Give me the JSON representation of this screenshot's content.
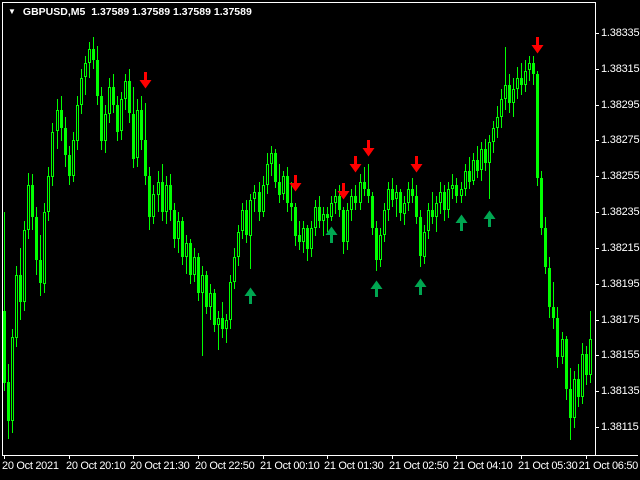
{
  "window": {
    "dropdown_icon": "▼",
    "title": "GBPUSD,M5",
    "quotes": [
      "1.37589",
      "1.37589",
      "1.37589",
      "1.37589"
    ]
  },
  "colors": {
    "background": "#000000",
    "frame": "#ffffff",
    "axis_text": "#ffffff",
    "candle": "#00ff00",
    "bull_fill": "#000000",
    "bear_fill": "#00ff00",
    "sell_arrow": "#ff0000",
    "buy_arrow": "#00a651"
  },
  "chart_data": {
    "type": "candlestick",
    "symbol": "GBPUSD",
    "timeframe": "M5",
    "title": "GBPUSD,M5 1.37589 1.37589 1.37589 1.37589",
    "grid": false,
    "y_axis": {
      "side": "right",
      "max": 1.38335,
      "min": 1.38115,
      "step": 0.0002,
      "labels": [
        "1.38335",
        "1.38315",
        "1.38295",
        "1.38275",
        "1.38255",
        "1.38235",
        "1.38215",
        "1.38195",
        "1.38175",
        "1.38155",
        "1.38135",
        "1.38115"
      ]
    },
    "x_axis": {
      "side": "bottom",
      "ticks": [
        {
          "bar": 0,
          "label": "20 Oct 2021"
        },
        {
          "bar": 16,
          "label": "20 Oct 20:10"
        },
        {
          "bar": 32,
          "label": "20 Oct 21:30"
        },
        {
          "bar": 48,
          "label": "20 Oct 22:50"
        },
        {
          "bar": 64,
          "label": "21 Oct 00:10"
        },
        {
          "bar": 80,
          "label": "21 Oct 01:30"
        },
        {
          "bar": 96,
          "label": "21 Oct 02:50"
        },
        {
          "bar": 112,
          "label": "21 Oct 04:10"
        },
        {
          "bar": 128,
          "label": "21 Oct 05:30"
        },
        {
          "bar": 144,
          "label": "21 Oct 06:50"
        }
      ]
    },
    "candles_format": [
      "open",
      "high",
      "low",
      "close"
    ],
    "candles": [
      [
        1.3818,
        1.38235,
        1.38135,
        1.3814
      ],
      [
        1.3814,
        1.3815,
        1.38108,
        1.38118
      ],
      [
        1.38118,
        1.3817,
        1.38112,
        1.38165
      ],
      [
        1.38165,
        1.38205,
        1.3816,
        1.382
      ],
      [
        1.382,
        1.38215,
        1.38175,
        1.38185
      ],
      [
        1.38185,
        1.3823,
        1.3818,
        1.38225
      ],
      [
        1.38225,
        1.38257,
        1.3822,
        1.3825
      ],
      [
        1.3825,
        1.38256,
        1.38225,
        1.38232
      ],
      [
        1.38232,
        1.38238,
        1.382,
        1.38208
      ],
      [
        1.38208,
        1.38222,
        1.38188,
        1.38195
      ],
      [
        1.38195,
        1.3824,
        1.3819,
        1.38235
      ],
      [
        1.38235,
        1.3826,
        1.3823,
        1.38255
      ],
      [
        1.38255,
        1.38285,
        1.3825,
        1.3828
      ],
      [
        1.3828,
        1.38298,
        1.3827,
        1.38292
      ],
      [
        1.38292,
        1.383,
        1.38275,
        1.38282
      ],
      [
        1.38282,
        1.38288,
        1.3826,
        1.38267
      ],
      [
        1.38267,
        1.38272,
        1.3825,
        1.38255
      ],
      [
        1.38255,
        1.3828,
        1.38252,
        1.38275
      ],
      [
        1.38275,
        1.383,
        1.3827,
        1.38295
      ],
      [
        1.38295,
        1.38315,
        1.3829,
        1.3831
      ],
      [
        1.3831,
        1.38322,
        1.383,
        1.38318
      ],
      [
        1.38318,
        1.3833,
        1.3831,
        1.38326
      ],
      [
        1.38326,
        1.38333,
        1.38315,
        1.3832
      ],
      [
        1.3832,
        1.38328,
        1.38295,
        1.383
      ],
      [
        1.383,
        1.38305,
        1.3827,
        1.38275
      ],
      [
        1.38275,
        1.38295,
        1.38268,
        1.3829
      ],
      [
        1.3829,
        1.3831,
        1.38285,
        1.38305
      ],
      [
        1.38305,
        1.38312,
        1.3829,
        1.38295
      ],
      [
        1.38295,
        1.383,
        1.38275,
        1.3828
      ],
      [
        1.3828,
        1.38302,
        1.38275,
        1.38298
      ],
      [
        1.38298,
        1.38312,
        1.38292,
        1.38308
      ],
      [
        1.38308,
        1.38315,
        1.38285,
        1.3829
      ],
      [
        1.3829,
        1.38305,
        1.3826,
        1.38265
      ],
      [
        1.38265,
        1.38298,
        1.3826,
        1.38292
      ],
      [
        1.38292,
        1.383,
        1.3827,
        1.38275
      ],
      [
        1.38275,
        1.38296,
        1.3825,
        1.38255
      ],
      [
        1.38255,
        1.3826,
        1.38225,
        1.38232
      ],
      [
        1.38232,
        1.3825,
        1.38228,
        1.38245
      ],
      [
        1.38245,
        1.38258,
        1.38235,
        1.38252
      ],
      [
        1.38252,
        1.38262,
        1.3823,
        1.38235
      ],
      [
        1.38235,
        1.38255,
        1.38228,
        1.3825
      ],
      [
        1.3825,
        1.38256,
        1.3823,
        1.38236
      ],
      [
        1.38236,
        1.3824,
        1.38215,
        1.3822
      ],
      [
        1.3822,
        1.38235,
        1.38212,
        1.3823
      ],
      [
        1.3823,
        1.38232,
        1.38205,
        1.3821
      ],
      [
        1.3821,
        1.38222,
        1.382,
        1.38218
      ],
      [
        1.38218,
        1.3822,
        1.38195,
        1.382
      ],
      [
        1.382,
        1.38215,
        1.38196,
        1.3821
      ],
      [
        1.3821,
        1.38212,
        1.38185,
        1.3819
      ],
      [
        1.3819,
        1.38205,
        1.38155,
        1.382
      ],
      [
        1.382,
        1.38202,
        1.38178,
        1.38182
      ],
      [
        1.38182,
        1.38195,
        1.38175,
        1.3819
      ],
      [
        1.3819,
        1.38192,
        1.38168,
        1.38172
      ],
      [
        1.38172,
        1.3818,
        1.38158,
        1.38176
      ],
      [
        1.38176,
        1.38185,
        1.38165,
        1.3817
      ],
      [
        1.3817,
        1.38178,
        1.38162,
        1.38175
      ],
      [
        1.38175,
        1.382,
        1.3817,
        1.38196
      ],
      [
        1.38196,
        1.38215,
        1.38192,
        1.3821
      ],
      [
        1.3821,
        1.38228,
        1.38205,
        1.38224
      ],
      [
        1.38224,
        1.3824,
        1.3822,
        1.38236
      ],
      [
        1.38236,
        1.38242,
        1.38218,
        1.38222
      ],
      [
        1.38222,
        1.38245,
        1.38203,
        1.38242
      ],
      [
        1.38242,
        1.3825,
        1.38235,
        1.38246
      ],
      [
        1.38246,
        1.38252,
        1.3823,
        1.38235
      ],
      [
        1.38235,
        1.38255,
        1.38232,
        1.3825
      ],
      [
        1.3825,
        1.38268,
        1.38245,
        1.38262
      ],
      [
        1.38262,
        1.38272,
        1.38255,
        1.38268
      ],
      [
        1.38268,
        1.3827,
        1.38248,
        1.38252
      ],
      [
        1.38252,
        1.38262,
        1.3824,
        1.38245
      ],
      [
        1.38245,
        1.38258,
        1.38242,
        1.38255
      ],
      [
        1.38255,
        1.3826,
        1.38235,
        1.3824
      ],
      [
        1.3824,
        1.38252,
        1.3823,
        1.38238
      ],
      [
        1.38238,
        1.3824,
        1.38216,
        1.38222
      ],
      [
        1.38222,
        1.3823,
        1.38214,
        1.38218
      ],
      [
        1.38218,
        1.3823,
        1.38212,
        1.38226
      ],
      [
        1.38226,
        1.38228,
        1.38208,
        1.38214
      ],
      [
        1.38214,
        1.3823,
        1.3821,
        1.38226
      ],
      [
        1.38226,
        1.38242,
        1.38222,
        1.38238
      ],
      [
        1.38238,
        1.38244,
        1.38226,
        1.3823
      ],
      [
        1.3823,
        1.38238,
        1.38222,
        1.38234
      ],
      [
        1.38234,
        1.38238,
        1.38224,
        1.38232
      ],
      [
        1.38232,
        1.38244,
        1.3823,
        1.3824
      ],
      [
        1.3824,
        1.38248,
        1.38234,
        1.38244
      ],
      [
        1.38244,
        1.3825,
        1.38232,
        1.38236
      ],
      [
        1.38236,
        1.38238,
        1.38212,
        1.38218
      ],
      [
        1.38218,
        1.3824,
        1.38214,
        1.38236
      ],
      [
        1.38236,
        1.38248,
        1.3823,
        1.38244
      ],
      [
        1.38244,
        1.3825,
        1.38236,
        1.3824
      ],
      [
        1.3824,
        1.38256,
        1.38236,
        1.38252
      ],
      [
        1.38252,
        1.3826,
        1.38244,
        1.38248
      ],
      [
        1.38248,
        1.38262,
        1.3824,
        1.38244
      ],
      [
        1.38244,
        1.38246,
        1.38222,
        1.38226
      ],
      [
        1.38226,
        1.3823,
        1.38202,
        1.38208
      ],
      [
        1.38208,
        1.38226,
        1.38204,
        1.38222
      ],
      [
        1.38222,
        1.3824,
        1.38218,
        1.38236
      ],
      [
        1.38236,
        1.38252,
        1.3823,
        1.38248
      ],
      [
        1.38248,
        1.38254,
        1.38238,
        1.38242
      ],
      [
        1.38242,
        1.3825,
        1.38232,
        1.38246
      ],
      [
        1.38246,
        1.38248,
        1.3823,
        1.38234
      ],
      [
        1.38234,
        1.38244,
        1.38228,
        1.3824
      ],
      [
        1.3824,
        1.38252,
        1.38236,
        1.38248
      ],
      [
        1.38248,
        1.38254,
        1.3824,
        1.38244
      ],
      [
        1.38244,
        1.3825,
        1.38228,
        1.38232
      ],
      [
        1.38232,
        1.38236,
        1.38204,
        1.3821
      ],
      [
        1.3821,
        1.38228,
        1.38206,
        1.38224
      ],
      [
        1.38224,
        1.3824,
        1.3822,
        1.38236
      ],
      [
        1.38236,
        1.38246,
        1.38228,
        1.38232
      ],
      [
        1.38232,
        1.38244,
        1.38224,
        1.3824
      ],
      [
        1.3824,
        1.38252,
        1.38234,
        1.38246
      ],
      [
        1.38246,
        1.3825,
        1.3823,
        1.38236
      ],
      [
        1.38236,
        1.38252,
        1.38232,
        1.38248
      ],
      [
        1.38248,
        1.38256,
        1.38242,
        1.3825
      ],
      [
        1.3825,
        1.38254,
        1.3824,
        1.38244
      ],
      [
        1.38244,
        1.38252,
        1.3824,
        1.38248
      ],
      [
        1.38248,
        1.38262,
        1.38244,
        1.38258
      ],
      [
        1.38258,
        1.38266,
        1.38248,
        1.38252
      ],
      [
        1.38252,
        1.38268,
        1.3825,
        1.38264
      ],
      [
        1.38264,
        1.38272,
        1.38254,
        1.38258
      ],
      [
        1.38258,
        1.38274,
        1.38252,
        1.3827
      ],
      [
        1.3827,
        1.38276,
        1.38258,
        1.38262
      ],
      [
        1.38262,
        1.38278,
        1.38242,
        1.38274
      ],
      [
        1.38274,
        1.38286,
        1.38268,
        1.38282
      ],
      [
        1.38282,
        1.38294,
        1.38276,
        1.38288
      ],
      [
        1.38288,
        1.38304,
        1.38282,
        1.38298
      ],
      [
        1.38298,
        1.38327,
        1.38292,
        1.38306
      ],
      [
        1.38306,
        1.38312,
        1.3829,
        1.38296
      ],
      [
        1.38296,
        1.3831,
        1.38288,
        1.38304
      ],
      [
        1.38304,
        1.38316,
        1.38298,
        1.3831
      ],
      [
        1.3831,
        1.38318,
        1.383,
        1.38306
      ],
      [
        1.38306,
        1.3832,
        1.38302,
        1.38314
      ],
      [
        1.38314,
        1.38322,
        1.38308,
        1.38318
      ],
      [
        1.38318,
        1.38322,
        1.38306,
        1.38312
      ],
      [
        1.38312,
        1.38314,
        1.3825,
        1.38254
      ],
      [
        1.38254,
        1.38258,
        1.38222,
        1.38226
      ],
      [
        1.38226,
        1.38232,
        1.382,
        1.38204
      ],
      [
        1.38204,
        1.3821,
        1.38176,
        1.38182
      ],
      [
        1.38182,
        1.38196,
        1.3817,
        1.38176
      ],
      [
        1.38176,
        1.38182,
        1.38148,
        1.38154
      ],
      [
        1.38154,
        1.38168,
        1.3815,
        1.38164
      ],
      [
        1.38164,
        1.38166,
        1.3813,
        1.38136
      ],
      [
        1.38136,
        1.38148,
        1.38108,
        1.3812
      ],
      [
        1.3812,
        1.38146,
        1.38114,
        1.38142
      ],
      [
        1.38142,
        1.3815,
        1.38126,
        1.38132
      ],
      [
        1.38132,
        1.38162,
        1.38128,
        1.38156
      ],
      [
        1.38156,
        1.3816,
        1.38138,
        1.38144
      ],
      [
        1.38144,
        1.3818,
        1.3814,
        1.38164
      ]
    ],
    "signals": {
      "sell": [
        {
          "bar": 35,
          "price": 1.38304
        },
        {
          "bar": 72,
          "price": 1.38246
        },
        {
          "bar": 84,
          "price": 1.38242
        },
        {
          "bar": 87,
          "price": 1.38257
        },
        {
          "bar": 90,
          "price": 1.38266
        },
        {
          "bar": 102,
          "price": 1.38257
        },
        {
          "bar": 132,
          "price": 1.38323
        }
      ],
      "buy": [
        {
          "bar": 61,
          "price": 1.38193
        },
        {
          "bar": 81,
          "price": 1.38227
        },
        {
          "bar": 92,
          "price": 1.38197
        },
        {
          "bar": 103,
          "price": 1.38198
        },
        {
          "bar": 113,
          "price": 1.38234
        },
        {
          "bar": 120,
          "price": 1.38236
        }
      ]
    }
  }
}
